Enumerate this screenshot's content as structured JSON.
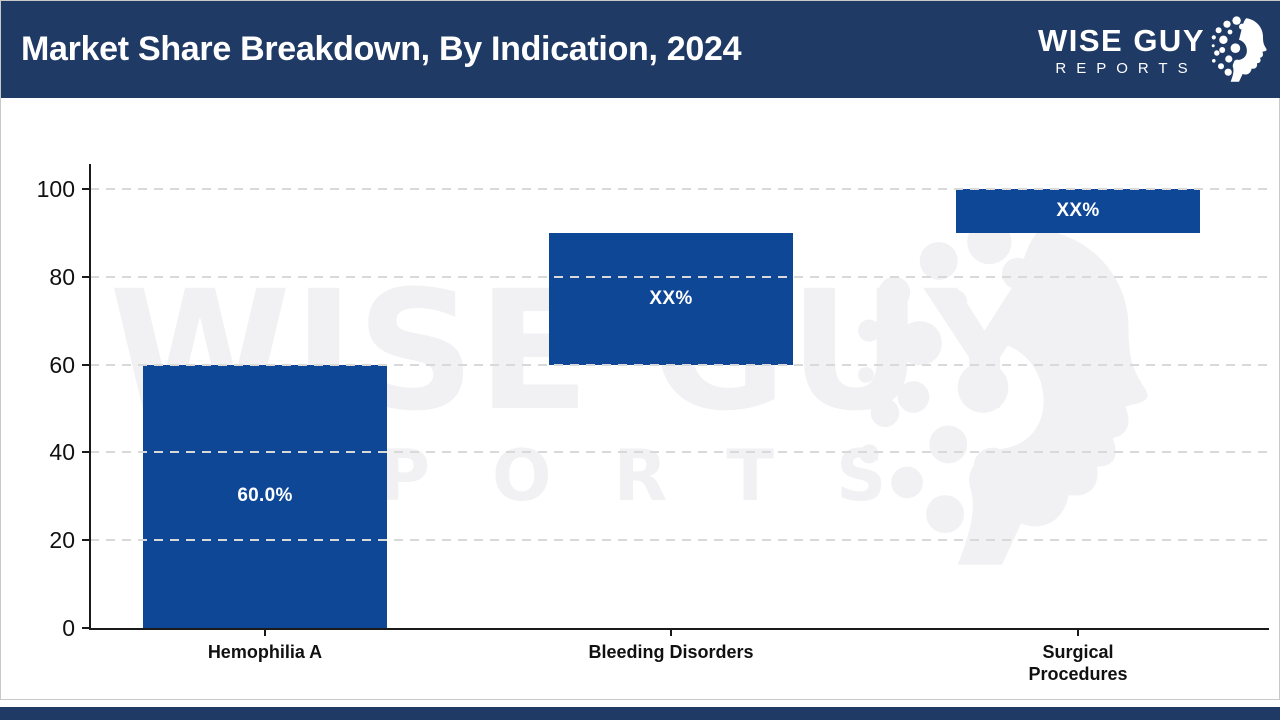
{
  "header": {
    "title": "Market Share Breakdown, By Indication, 2024",
    "logo": {
      "line1": "WISE GUY",
      "line2": "REPORTS"
    }
  },
  "watermark": {
    "line1": "WISE GUY",
    "line2": "REPORTS"
  },
  "chart_data": {
    "type": "bar",
    "subtype": "waterfall",
    "title": "Market Share Breakdown, By Indication, 2024",
    "xlabel": "",
    "ylabel": "",
    "categories": [
      "Hemophilia A",
      "Bleeding Disorders",
      "Surgical\nProcedures"
    ],
    "bars": [
      {
        "category": "Hemophilia A",
        "base": 0,
        "top": 60,
        "label": "60.0%"
      },
      {
        "category": "Bleeding Disorders",
        "base": 60,
        "top": 90,
        "label": "XX%"
      },
      {
        "category": "Surgical\nProcedures",
        "base": 90,
        "top": 100,
        "label": "XX%"
      }
    ],
    "yticks": [
      0,
      20,
      40,
      60,
      80,
      100
    ],
    "ylim": [
      0,
      105.7
    ],
    "grid": "dashed horizontal, light gray, drawn over bars",
    "legend": "none",
    "bar_color": "#0d4796"
  },
  "colors": {
    "header_bg": "#203a66",
    "footer_bg": "#203a66",
    "bar": "#0d4796",
    "gridline": "#d9d9d9",
    "axis": "#1a1a1a",
    "watermark": "#f1f1f4"
  }
}
